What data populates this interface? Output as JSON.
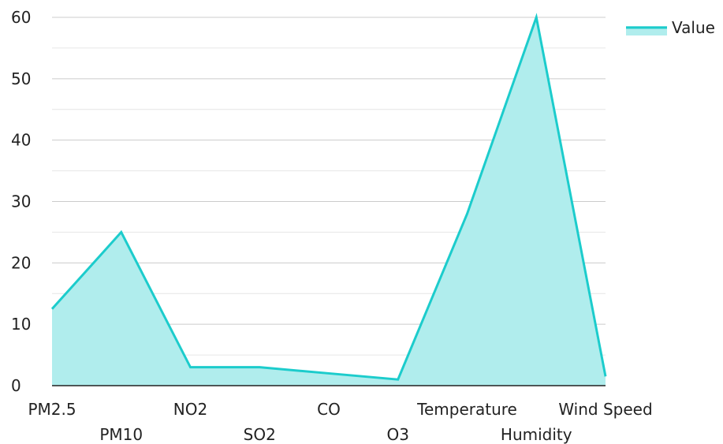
{
  "chart_data": {
    "type": "area",
    "title": "",
    "xlabel": "",
    "ylabel": "",
    "categories": [
      "PM2.5",
      "PM10",
      "NO2",
      "SO2",
      "CO",
      "O3",
      "Temperature",
      "Humidity",
      "Wind Speed"
    ],
    "series": [
      {
        "name": "Value",
        "values": [
          12.5,
          25,
          3,
          3,
          2,
          1,
          28,
          60,
          1.5
        ],
        "line_color": "#1ccccc",
        "fill_color": "#b0eded"
      }
    ],
    "ylim": [
      0,
      60
    ],
    "yticks": [
      0,
      10,
      20,
      30,
      40,
      50,
      60
    ],
    "grid": true,
    "legend": {
      "position": "top-right",
      "label": "Value"
    }
  }
}
